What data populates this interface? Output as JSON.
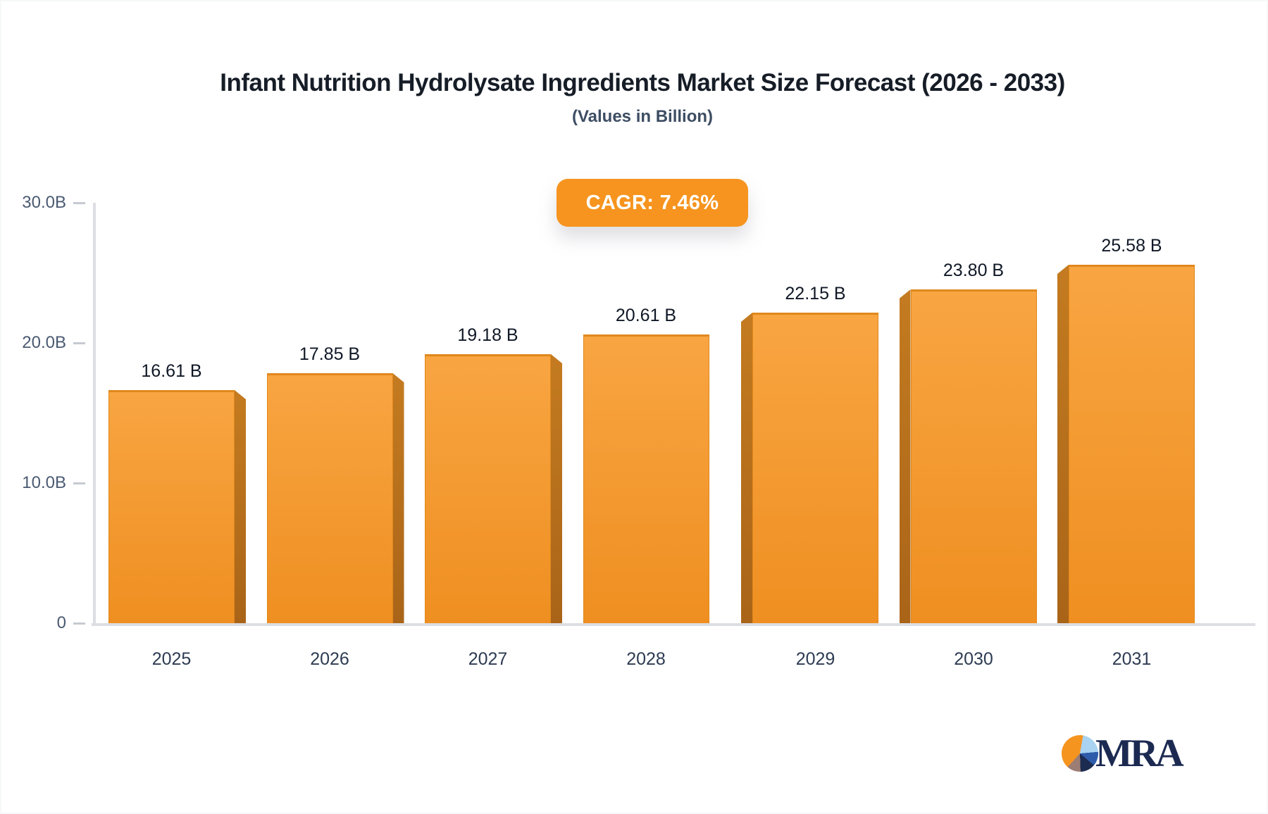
{
  "header": {
    "title": "Infant Nutrition Hydrolysate Ingredients Market Size Forecast (2026 - 2033)",
    "subtitle": "(Values in Billion)"
  },
  "badge": {
    "label": "CAGR: 7.46%"
  },
  "chart_data": {
    "type": "bar",
    "title": "Infant Nutrition Hydrolysate Ingredients Market Size Forecast (2026 - 2033)",
    "subtitle": "(Values in Billion)",
    "annotation": "CAGR: 7.46%",
    "categories": [
      "2025",
      "2026",
      "2027",
      "2028",
      "2029",
      "2030",
      "2031"
    ],
    "values": [
      16.61,
      17.85,
      19.18,
      20.61,
      22.15,
      23.8,
      25.58
    ],
    "value_labels": [
      "16.61 B",
      "17.85 B",
      "19.18 B",
      "20.61 B",
      "22.15 B",
      "23.80 B",
      "25.58 B"
    ],
    "xlabel": "",
    "ylabel": "",
    "ylim": [
      0,
      30
    ],
    "yticks": [
      {
        "label": "0",
        "value": 0
      },
      {
        "label": "10.0B",
        "value": 10
      },
      {
        "label": "20.0B",
        "value": 20
      },
      {
        "label": "30.0B",
        "value": 30
      }
    ],
    "grid": false,
    "legend": "none",
    "bar_style": "3d-perspective-center-vanishing"
  },
  "logo": {
    "text": "MRA"
  },
  "colors": {
    "bar_top": "#f8a542",
    "bar_bottom": "#ef8f21",
    "bar_edge": "#e0881c",
    "side_top": "#c47b20",
    "side_bottom": "#a96418",
    "badge_bg": "#f6941f",
    "badge_text": "#ffffff",
    "axis_line": "#dcdee3",
    "tick": "#c6cad1",
    "ytick_text": "#4b5a72",
    "xtick_text": "#2d3b52",
    "value_text": "#101826",
    "title_text": "#161d27",
    "subtitle_text": "#3d4d63",
    "logo_navy": "#1c2a52",
    "pie_orange": "#f5941f",
    "pie_lightblue": "#a9d3f1",
    "pie_royal": "#2e5cab",
    "pie_navy": "#1c2b50",
    "pie_taupe": "#9b7d74"
  }
}
